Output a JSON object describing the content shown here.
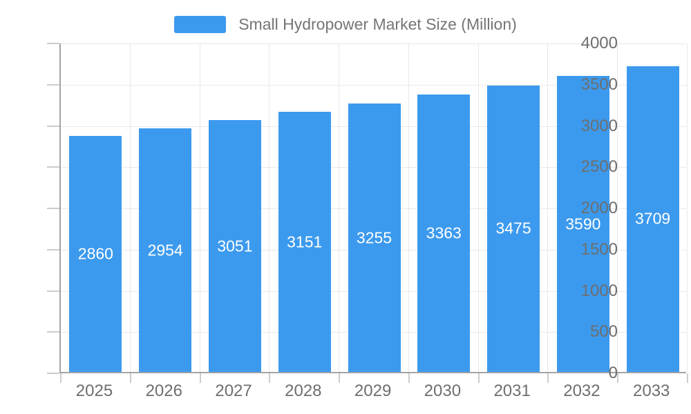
{
  "legend": {
    "label": "Small Hydropower Market Size (Million)",
    "swatch_color": "#3c9aee"
  },
  "chart_data": {
    "type": "bar",
    "title": "",
    "categories": [
      "2025",
      "2026",
      "2027",
      "2028",
      "2029",
      "2030",
      "2031",
      "2032",
      "2033"
    ],
    "series": [
      {
        "name": "Small Hydropower Market Size (Million)",
        "values": [
          2860,
          2954,
          3051,
          3151,
          3255,
          3363,
          3475,
          3590,
          3709
        ]
      }
    ],
    "xlabel": "",
    "ylabel": "",
    "ylim": [
      0,
      4000
    ],
    "y_ticks": [
      0,
      500,
      1000,
      1500,
      2000,
      2500,
      3000,
      3500,
      4000
    ],
    "grid": true,
    "legend_position": "top-center",
    "value_labels": "centered-inside-bars",
    "colors": {
      "bar": "#3c9aee",
      "gridline": "#e8e8e8",
      "tick": "#cccccc",
      "axis_line": "#a3a3a3",
      "axis_text": "#6e6e6e",
      "legend_text": "#757575",
      "value_text": "#ffffff",
      "background": "#ffffff"
    }
  }
}
